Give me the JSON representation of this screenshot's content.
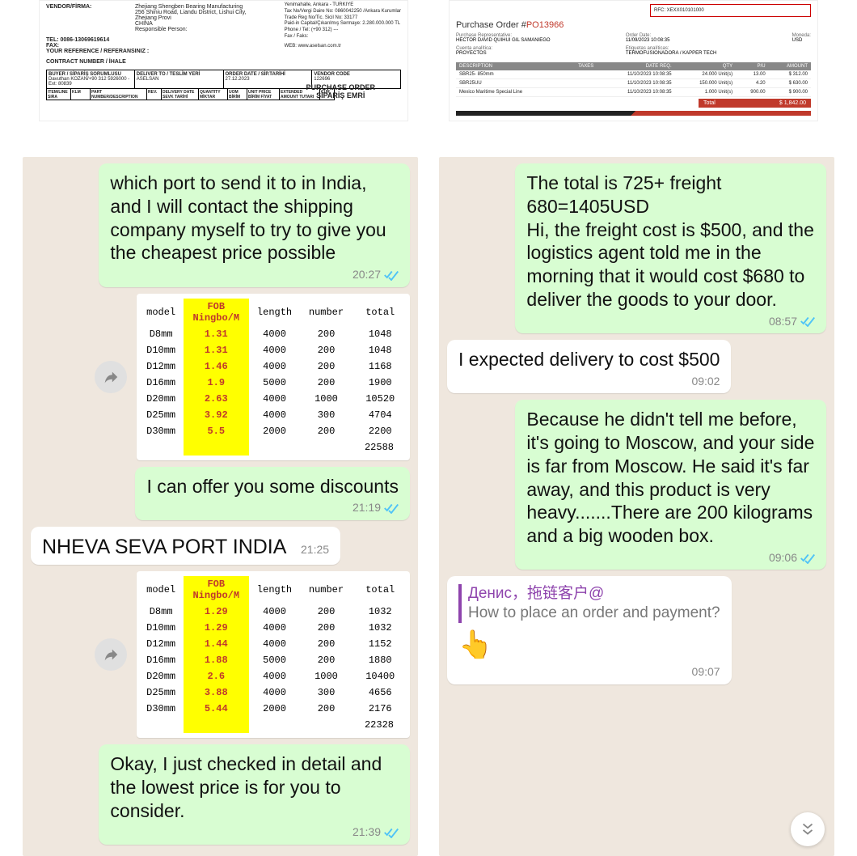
{
  "docLeft": {
    "vendorLabel": "VENDOR/FİRMA:",
    "vendorLines": [
      "Zhejiang Shengben Bearing Manufacturing",
      "256 Shiniu Road, Liandu District, Lishui City,",
      "Zhejiang Provi",
      "CHINA",
      "Responsible Person:"
    ],
    "tel": "TEL: 0086-13069619614",
    "fax": "FAX:",
    "ref": "YOUR REFERENCE / REFERANSINIZ :",
    "contract": "CONTRACT NUMBER / İHALE",
    "rightLines": [
      "Yenimahalle, Ankara - TURKIYE",
      "Tax No/Vergi Daire No: 0860042250 /Ankara Kurumlar",
      "Trade Reg No/Tic. Sicil No: 33177",
      "Paid-in Capital/Çıkarılmış Sermaye: 2.280.000.000 TL",
      "Phone / Tel: (+90 312) ---",
      "Fax / Faks:",
      "WEB: www.aselsan.com.tr"
    ],
    "poTitle": "PURCHASE ORDER",
    "poTitle2": "SİPARİŞ EMRİ",
    "g4": [
      {
        "h": "BUYER / SİPARİŞ SORUMLUSU",
        "v": "Davuthan KOZAN/+90 312 5926000 - Ext: 80839"
      },
      {
        "h": "DELIVER TO / TESLİM YERİ",
        "v": "ASELSAN"
      },
      {
        "h": "ORDER DATE / SİP.TARİHİ",
        "v": "27.12.2023"
      },
      {
        "h": "VENDOR CODE",
        "v": "122696"
      }
    ],
    "cols": [
      "ITEM/LINE SIRA",
      "KLM",
      "PART NUMBER/DESCRIPTION",
      "REV.",
      "DELIVERY DATE SEVK TARİHİ",
      "QUANTITY MİKTAR",
      "UOM BİRİM",
      "UNIT PRICE BİRİM FİYAT",
      "EXTENDED AMOUNT TUTARI",
      "CUR."
    ]
  },
  "docRight": {
    "rfc": "RFC: XEXX010101000",
    "poLabel": "Purchase Order #",
    "poNum": "PO13966",
    "repLabel": "Purchase Representative:",
    "rep": "HECTOR DAVID QUIHUI GIL SAMANIEGO",
    "cuenta": "Cuenta analítica:",
    "proyectos": "PROYECTOS",
    "orderDateL": "Order Date:",
    "orderDate": "11/09/2023 10:08:35",
    "etiq": "Etiquetas analíticas:",
    "etiqV": "TERMOFUSIONADORA / KAPPER TECH",
    "monL": "Moneda:",
    "mon": "USD",
    "headers": [
      "DESCRIPTION",
      "TAXES",
      "DATE REQ.",
      "QTY",
      "P/U",
      "AMOUNT"
    ],
    "rows": [
      [
        "SBR25- 850mm",
        "",
        "11/10/2023 10:08:35",
        "24.000 Unit(s)",
        "13.00",
        "$ 312.00"
      ],
      [
        "SBR25UU",
        "",
        "11/10/2023 10:08:35",
        "150.000 Unit(s)",
        "4.20",
        "$ 630.00"
      ],
      [
        "Mexico Maritime Special Line",
        "",
        "11/10/2023 10:08:35",
        "1.000 Unit(s)",
        "900.00",
        "$ 900.00"
      ]
    ],
    "totalL": "Total",
    "total": "$ 1,842.00"
  },
  "chatLeft": {
    "m1": "which port to send it to in India, and I will contact the shipping company myself to try to give you the cheapest price possible",
    "t1": "20:27",
    "table1": {
      "headers": [
        "model",
        "FOB Ningbo/M",
        "length",
        "number",
        "total"
      ],
      "rows": [
        [
          "D8mm",
          "1.31",
          "4000",
          "200",
          "1048"
        ],
        [
          "D10mm",
          "1.31",
          "4000",
          "200",
          "1048"
        ],
        [
          "D12mm",
          "1.46",
          "4000",
          "200",
          "1168"
        ],
        [
          "D16mm",
          "1.9",
          "5000",
          "200",
          "1900"
        ],
        [
          "D20mm",
          "2.63",
          "4000",
          "1000",
          "10520"
        ],
        [
          "D25mm",
          "3.92",
          "4000",
          "300",
          "4704"
        ],
        [
          "D30mm",
          "5.5",
          "2000",
          "200",
          "2200"
        ]
      ],
      "sum": "22588"
    },
    "m2": "I can offer you some discounts",
    "t2": "21:19",
    "m3": "NHEVA SEVA PORT INDIA",
    "t3": "21:25",
    "table2": {
      "headers": [
        "model",
        "FOB Ningbo/M",
        "length",
        "number",
        "total"
      ],
      "rows": [
        [
          "D8mm",
          "1.29",
          "4000",
          "200",
          "1032"
        ],
        [
          "D10mm",
          "1.29",
          "4000",
          "200",
          "1032"
        ],
        [
          "D12mm",
          "1.44",
          "4000",
          "200",
          "1152"
        ],
        [
          "D16mm",
          "1.88",
          "5000",
          "200",
          "1880"
        ],
        [
          "D20mm",
          "2.6",
          "4000",
          "1000",
          "10400"
        ],
        [
          "D25mm",
          "3.88",
          "4000",
          "300",
          "4656"
        ],
        [
          "D30mm",
          "5.44",
          "2000",
          "200",
          "2176"
        ]
      ],
      "sum": "22328"
    },
    "m4": "Okay, I just checked in detail and the lowest price is for you to consider.",
    "t4": "21:39"
  },
  "chatRight": {
    "m1": "The total is 725+ freight 680=1405USD\nHi, the freight cost is $500, and the logistics agent told me in the morning that it would cost $680 to deliver the goods to your door.",
    "t1": "08:57",
    "m2": "I expected delivery to cost $500",
    "t2": "09:02",
    "m3": "Because he didn't tell me before, it's going to Moscow, and your side is far from Moscow. He said it's far away, and this product is very heavy.......There are 200 kilograms and a big wooden box.",
    "t3": "09:06",
    "quoteName": "Денис，拖链客户@",
    "quoteTxt": "How to place an order and payment?",
    "emoji": "👆",
    "t4": "09:07"
  }
}
